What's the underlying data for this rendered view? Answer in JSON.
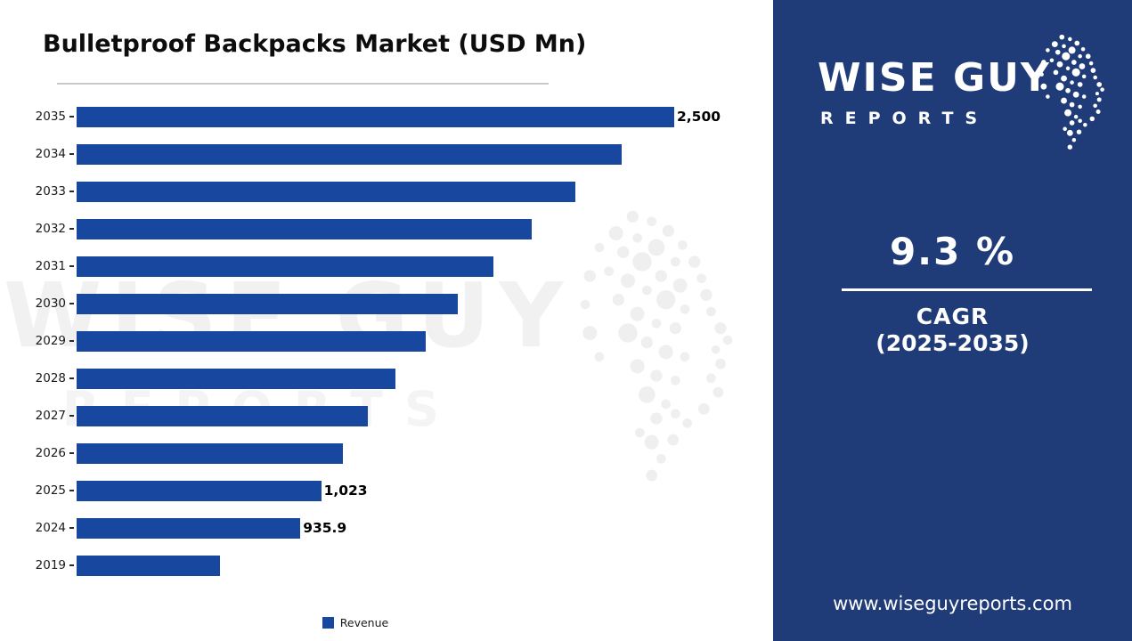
{
  "chart_data": {
    "type": "bar",
    "orientation": "horizontal",
    "title": "Bulletproof Backpacks Market (USD Mn)",
    "categories": [
      "2035",
      "2034",
      "2033",
      "2032",
      "2031",
      "2030",
      "2029",
      "2028",
      "2027",
      "2026",
      "2025",
      "2024",
      "2019"
    ],
    "values": [
      2500,
      2280,
      2085,
      1905,
      1745,
      1595,
      1460,
      1335,
      1220,
      1115,
      1023,
      935.9,
      600
    ],
    "bar_labels": [
      "2,500",
      "",
      "",
      "",
      "",
      "",
      "",
      "",
      "",
      "",
      "1,023",
      "935.9",
      ""
    ],
    "xlim": [
      0,
      2500
    ],
    "ylabel": "",
    "xlabel": "",
    "grid": false,
    "legend": [
      "Revenue"
    ],
    "legend_position": "bottom",
    "bar_color": "#17479E"
  },
  "watermark": {
    "line1": "WISE GUY",
    "line2": "REPORTS"
  },
  "brand": {
    "logo_line1": "WISE GUY",
    "logo_line2": "REPORTS",
    "cagr_value": "9.3 %",
    "cagr_label": "CAGR",
    "cagr_range": "(2025-2035)",
    "website": "www.wiseguyreports.com",
    "panel_color": "#1F3B78"
  }
}
